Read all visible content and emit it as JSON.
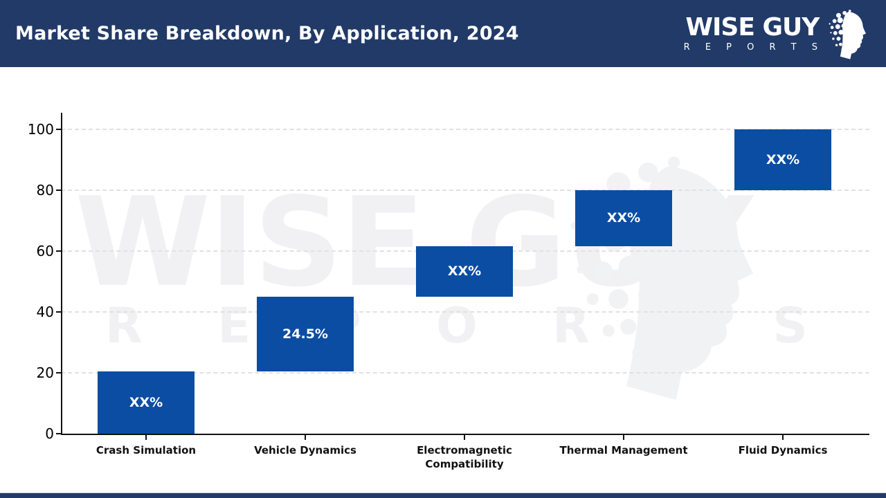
{
  "header": {
    "title": "Market Share Breakdown, By Application, 2024",
    "logo": {
      "line1": "WISE GUY",
      "line2": "R E P O R T S",
      "head_icon": "dotted-head-profile-icon"
    }
  },
  "footer": {
    "style": "navy-strip"
  },
  "watermark": {
    "line1": "WISE GUY",
    "line2": "R E P O R T S",
    "head_icon": "dotted-head-profile-icon"
  },
  "colors": {
    "header_bg": "#223A67",
    "footer_bg": "#223A67",
    "bar_fill": "#0B4DA2",
    "bar_label": "#FFFFFF",
    "grid": "#E1E1E1",
    "axis": "#111111",
    "tick_label": "#000000",
    "watermark": "#F1F1F3",
    "background": "#FFFFFF"
  },
  "chart_data": {
    "type": "bar",
    "subtype": "waterfall-floating-segments",
    "title": "Market Share Breakdown, By Application, 2024",
    "xlabel": "",
    "ylabel": "",
    "ylim": [
      0,
      100
    ],
    "yticks": [
      0,
      20,
      40,
      60,
      80,
      100
    ],
    "grid": "horizontal-dashed",
    "legend": "none",
    "categories": [
      "Crash Simulation",
      "Vehicle Dynamics",
      "Electromagnetic Compatibility",
      "Thermal Management",
      "Fluid Dynamics"
    ],
    "segments": [
      {
        "category": "Crash Simulation",
        "start": 0,
        "end": 20.5,
        "height": 20.5,
        "label": "XX%"
      },
      {
        "category": "Vehicle Dynamics",
        "start": 20.5,
        "end": 45,
        "height": 24.5,
        "label": "24.5%"
      },
      {
        "category": "Electromagnetic Compatibility",
        "start": 45,
        "end": 61.6,
        "height": 16.6,
        "label": "XX%"
      },
      {
        "category": "Thermal Management",
        "start": 61.6,
        "end": 80,
        "height": 18.4,
        "label": "XX%"
      },
      {
        "category": "Fluid Dynamics",
        "start": 80,
        "end": 100,
        "height": 20,
        "label": "XX%"
      }
    ]
  }
}
